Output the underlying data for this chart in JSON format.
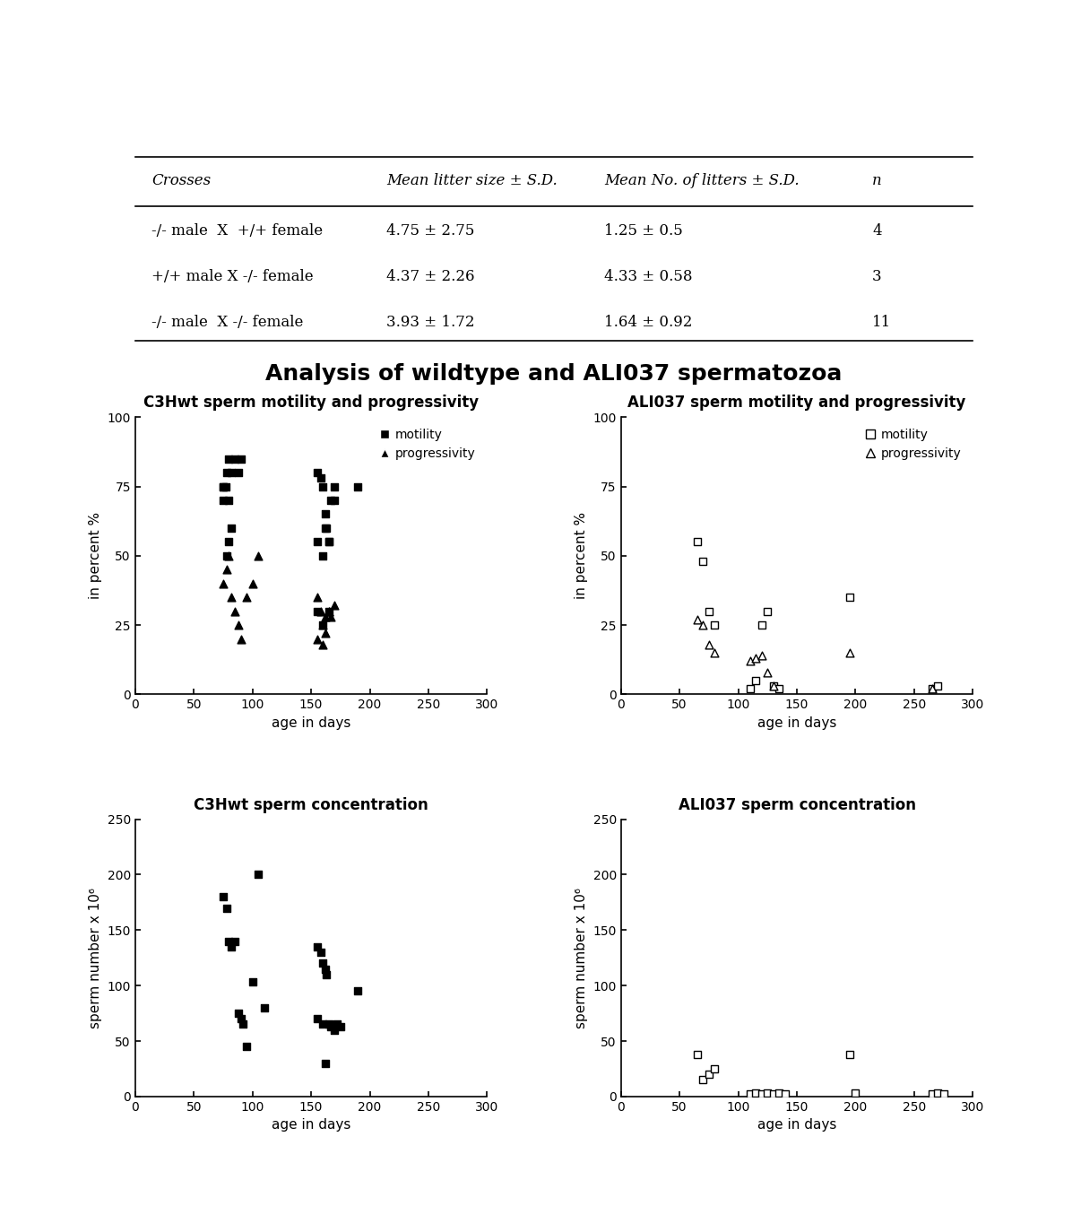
{
  "table": {
    "headers": [
      "Crosses",
      "Mean litter size ± S.D.",
      "Mean No. of litters ± S.D.",
      "n"
    ],
    "rows": [
      [
        "-/- male  X  +/+ female",
        "4.75 ± 2.75",
        "1.25 ± 0.5",
        "4"
      ],
      [
        "+/+ male X -/- female",
        "4.37 ± 2.26",
        "4.33 ± 0.58",
        "3"
      ],
      [
        "-/- male  X -/- female",
        "3.93 ± 1.72",
        "1.64 ± 0.92",
        "11"
      ]
    ]
  },
  "main_title": "Analysis of wildtype and ALI037 spermatozoa",
  "plots": {
    "c3hwt_motility": {
      "title": "C3Hwt sperm motility and progressivity",
      "xlabel": "age in days",
      "ylabel": "in percent %",
      "xlim": [
        0,
        300
      ],
      "ylim": [
        0,
        100
      ],
      "xticks": [
        0,
        50,
        100,
        150,
        200,
        250,
        300
      ],
      "yticks": [
        0,
        25,
        50,
        75,
        100
      ],
      "motility_x": [
        75,
        78,
        80,
        82,
        85,
        75,
        77,
        78,
        80,
        82,
        88,
        90,
        75,
        80,
        155,
        158,
        160,
        162,
        163,
        165,
        167,
        170,
        155,
        160,
        162,
        165,
        155,
        160,
        165,
        170,
        190
      ],
      "motility_y": [
        75,
        80,
        85,
        80,
        85,
        70,
        75,
        50,
        55,
        60,
        80,
        85,
        75,
        70,
        80,
        78,
        75,
        65,
        60,
        55,
        70,
        75,
        55,
        50,
        60,
        55,
        30,
        25,
        30,
        70,
        75
      ],
      "progressivity_x": [
        75,
        78,
        80,
        82,
        85,
        88,
        90,
        95,
        100,
        105,
        155,
        158,
        160,
        162,
        165,
        167,
        155,
        160,
        162,
        165,
        170
      ],
      "progressivity_y": [
        40,
        45,
        50,
        35,
        30,
        25,
        20,
        35,
        40,
        50,
        35,
        30,
        25,
        28,
        30,
        28,
        20,
        18,
        22,
        30,
        32
      ]
    },
    "ali037_motility": {
      "title": "ALI037 sperm motility and progressivity",
      "xlabel": "age in days",
      "ylabel": "in percent %",
      "xlim": [
        0,
        300
      ],
      "ylim": [
        0,
        100
      ],
      "xticks": [
        0,
        50,
        100,
        150,
        200,
        250,
        300
      ],
      "yticks": [
        0,
        25,
        50,
        75,
        100
      ],
      "motility_x": [
        65,
        70,
        75,
        80,
        110,
        115,
        120,
        125,
        130,
        135,
        195,
        265,
        270
      ],
      "motility_y": [
        55,
        48,
        30,
        25,
        2,
        5,
        25,
        30,
        3,
        2,
        35,
        2,
        3
      ],
      "progressivity_x": [
        65,
        70,
        75,
        80,
        110,
        115,
        120,
        125,
        130,
        195,
        265
      ],
      "progressivity_y": [
        27,
        25,
        18,
        15,
        12,
        13,
        14,
        8,
        3,
        15,
        2
      ]
    },
    "c3hwt_concentration": {
      "title": "C3Hwt sperm concentration",
      "xlabel": "age in days",
      "ylabel": "sperm number x 10⁶",
      "xlim": [
        0,
        300
      ],
      "ylim": [
        0,
        250
      ],
      "xticks": [
        0,
        50,
        100,
        150,
        200,
        250,
        300
      ],
      "yticks": [
        0,
        50,
        100,
        150,
        200,
        250
      ],
      "x": [
        75,
        78,
        80,
        82,
        85,
        88,
        90,
        92,
        95,
        100,
        105,
        110,
        155,
        158,
        160,
        162,
        163,
        165,
        167,
        170,
        172,
        175,
        155,
        160,
        162,
        190
      ],
      "y": [
        180,
        170,
        140,
        135,
        140,
        75,
        70,
        65,
        45,
        103,
        200,
        80,
        135,
        130,
        120,
        115,
        110,
        65,
        63,
        60,
        65,
        63,
        70,
        65,
        30,
        95
      ]
    },
    "ali037_concentration": {
      "title": "ALI037 sperm concentration",
      "xlabel": "age in days",
      "ylabel": "sperm number x 10⁶",
      "xlim": [
        0,
        300
      ],
      "ylim": [
        0,
        250
      ],
      "xticks": [
        0,
        50,
        100,
        150,
        200,
        250,
        300
      ],
      "yticks": [
        0,
        50,
        100,
        150,
        200,
        250
      ],
      "x": [
        65,
        70,
        75,
        80,
        110,
        115,
        120,
        125,
        130,
        135,
        140,
        195,
        200,
        265,
        270,
        275
      ],
      "y": [
        38,
        15,
        20,
        25,
        2,
        3,
        2,
        3,
        2,
        3,
        2,
        38,
        3,
        2,
        3,
        2
      ]
    }
  },
  "background_color": "#ffffff",
  "text_color": "#000000"
}
